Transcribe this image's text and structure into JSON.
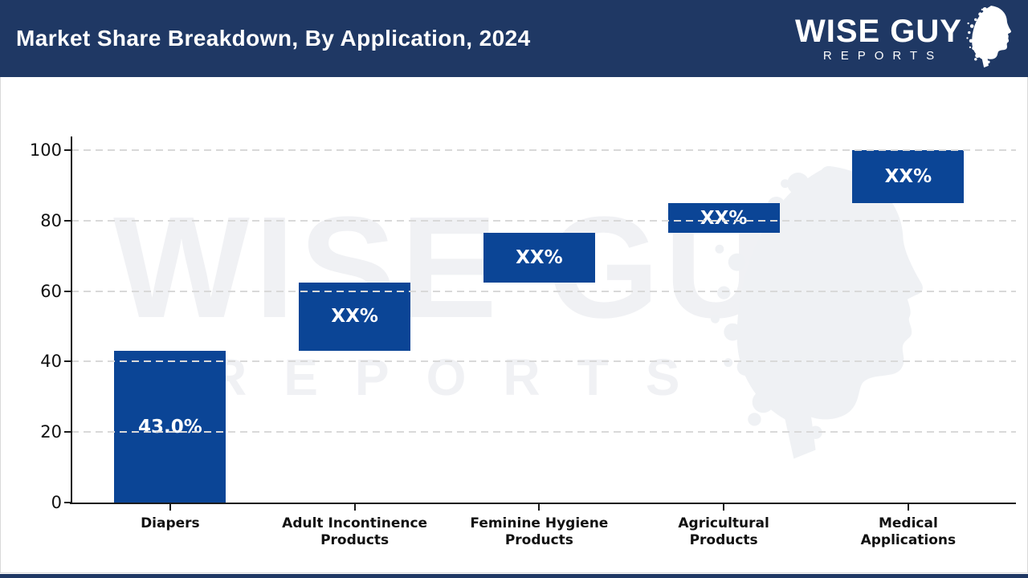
{
  "header": {
    "title": "Market Share Breakdown, By Application, 2024",
    "logo": {
      "name": "WISE GUY",
      "sub": "REPORTS"
    }
  },
  "watermark": {
    "line1": "WISE GUY",
    "line2": "REPORTS"
  },
  "colors": {
    "header_bg": "#1f3864",
    "bar": "#0b4596",
    "grid": "#d9d9d9",
    "axis": "#1a1a1a",
    "bar_label_text": "#ffffff",
    "watermark": "#f0f1f4"
  },
  "chart_data": {
    "type": "bar",
    "subtype": "waterfall",
    "title": "Market Share Breakdown, By Application, 2024",
    "categories": [
      "Diapers",
      "Adult Incontinence Products",
      "Feminine Hygiene Products",
      "Agricultural Products",
      "Medical Applications"
    ],
    "category_lines": [
      [
        "Diapers"
      ],
      [
        "Adult Incontinence",
        "Products"
      ],
      [
        "Feminine Hygiene",
        "Products"
      ],
      [
        "Agricultural",
        "Products"
      ],
      [
        "Medical",
        "Applications"
      ]
    ],
    "segments": [
      {
        "category": "Diapers",
        "start": 0,
        "end": 43,
        "increment": 43.0,
        "label": "43.0%"
      },
      {
        "category": "Adult Incontinence Products",
        "start": 43,
        "end": 62.5,
        "increment": 19.5,
        "label": "XX%"
      },
      {
        "category": "Feminine Hygiene Products",
        "start": 62.5,
        "end": 76.5,
        "increment": 14.0,
        "label": "XX%"
      },
      {
        "category": "Agricultural Products",
        "start": 76.5,
        "end": 85,
        "increment": 8.5,
        "label": "XX%"
      },
      {
        "category": "Medical Applications",
        "start": 85,
        "end": 100,
        "increment": 15.0,
        "label": "XX%"
      }
    ],
    "yticks": [
      0,
      20,
      40,
      60,
      80,
      100
    ],
    "ylim": [
      0,
      104
    ],
    "xlabel": "",
    "ylabel": "",
    "grid": "horizontal-dashed-over-bars",
    "legend": "none"
  }
}
